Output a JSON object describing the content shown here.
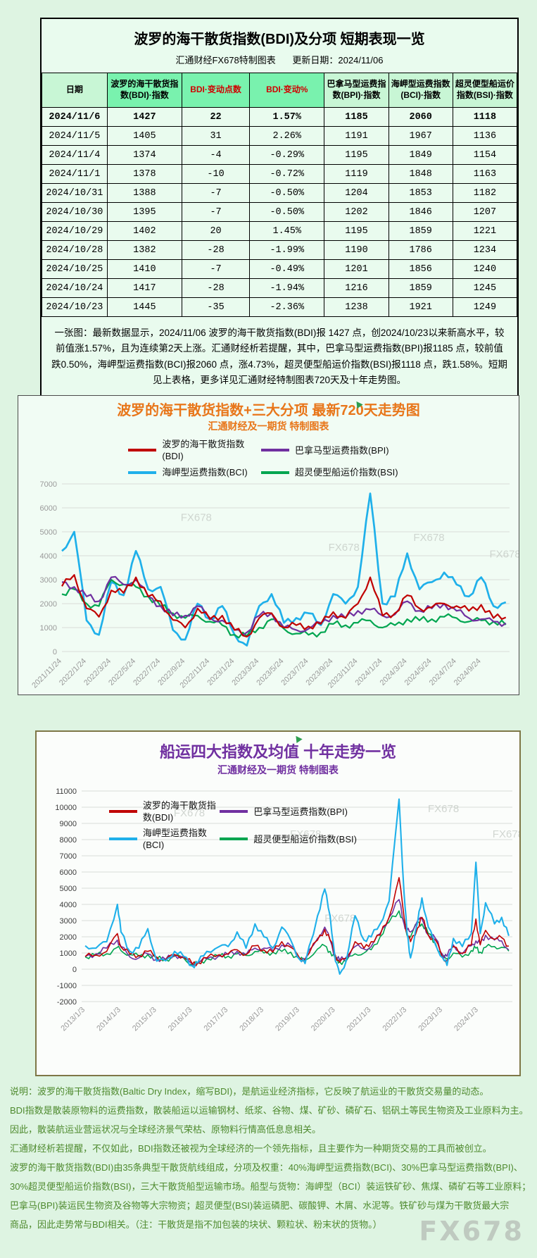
{
  "table_card": {
    "title": "波罗的海干散货指数(BDI)及分项 短期表现一览",
    "source": "汇通财经FX678特制图表",
    "update": "更新日期：2024/11/06",
    "columns": [
      "日期",
      "波罗的海干散货指数(BDI)·指数",
      "BDI·变动点数",
      "BDI·变动%",
      "巴拿马型运费指数(BPI)·指数",
      "海岬型运费指数(BCI)·指数",
      "超灵便型船运价指数(BSI)·指数"
    ],
    "rows": [
      [
        "2024/11/6",
        "1427",
        "22",
        "1.57%",
        "1185",
        "2060",
        "1118"
      ],
      [
        "2024/11/5",
        "1405",
        "31",
        "2.26%",
        "1191",
        "1967",
        "1136"
      ],
      [
        "2024/11/4",
        "1374",
        "-4",
        "-0.29%",
        "1195",
        "1849",
        "1154"
      ],
      [
        "2024/11/1",
        "1378",
        "-10",
        "-0.72%",
        "1119",
        "1848",
        "1163"
      ],
      [
        "2024/10/31",
        "1388",
        "-7",
        "-0.50%",
        "1204",
        "1853",
        "1182"
      ],
      [
        "2024/10/30",
        "1395",
        "-7",
        "-0.50%",
        "1202",
        "1846",
        "1207"
      ],
      [
        "2024/10/29",
        "1402",
        "20",
        "1.45%",
        "1195",
        "1859",
        "1221"
      ],
      [
        "2024/10/28",
        "1382",
        "-28",
        "-1.99%",
        "1190",
        "1786",
        "1234"
      ],
      [
        "2024/10/25",
        "1410",
        "-7",
        "-0.49%",
        "1201",
        "1856",
        "1240"
      ],
      [
        "2024/10/24",
        "1417",
        "-28",
        "-1.94%",
        "1216",
        "1859",
        "1245"
      ],
      [
        "2024/10/23",
        "1445",
        "-35",
        "-2.36%",
        "1238",
        "1921",
        "1249"
      ]
    ],
    "note": "一张图：最新数据显示，2024/11/06 波罗的海干散货指数(BDI)报 1427 点，创2024/10/23以来新高水平，较前值涨1.57%，且为连续第2天上涨。汇通财经析若提醒，其中，巴拿马型运费指数(BPI)报1185 点，较前值跌0.50%，海岬型运费指数(BCI)报2060 点，涨4.73%，超灵便型船运价指数(BSI)报1118 点，跌1.58%。短期见上表格，更多详见汇通财经特制图表720天及十年走势图。"
  },
  "chart_data": [
    {
      "type": "line",
      "title": "波罗的海干散货指数+三大分项 最新720天走势图",
      "subtitle": "汇通财经及一期货 特制图表",
      "watermark": "FX678",
      "grid": true,
      "legend_position": "top",
      "ylim": [
        0,
        7000
      ],
      "y_step": 1000,
      "x_range": [
        0,
        36.3
      ],
      "x": [
        0,
        1,
        2,
        3,
        4,
        5,
        6,
        7,
        8,
        9,
        10,
        11,
        12,
        13,
        14,
        15,
        16,
        17,
        18,
        19,
        20,
        21,
        22,
        23,
        24,
        25,
        26,
        27,
        28,
        29,
        30,
        31,
        32,
        33,
        34,
        35,
        36
      ],
      "x_tick_positions": [
        0,
        2,
        4,
        6,
        8,
        10,
        12,
        14,
        16,
        18,
        20,
        22,
        24,
        26,
        28,
        30,
        32,
        34
      ],
      "x_tick_labels": [
        "2021/11/24",
        "2022/1/24",
        "2022/3/24",
        "2022/5/24",
        "2022/7/24",
        "2022/9/24",
        "2022/11/24",
        "2023/1/24",
        "2023/3/24",
        "2023/5/24",
        "2023/7/24",
        "2023/9/24",
        "2023/11/24",
        "2024/1/24",
        "2024/3/24",
        "2024/5/24",
        "2024/7/24",
        "2024/9/24"
      ],
      "draw_order": [
        2,
        3,
        1,
        0
      ],
      "series": [
        {
          "key": "bdi",
          "name": "波罗的海干散货指数(BDI)",
          "color": "#c00000",
          "values": [
            2727,
            3200,
            1800,
            1450,
            2550,
            2450,
            3100,
            2300,
            2100,
            1320,
            1000,
            1800,
            1350,
            1500,
            900,
            620,
            1400,
            1600,
            1000,
            1100,
            1050,
            1150,
            1650,
            1400,
            2000,
            3100,
            1500,
            1600,
            2350,
            1800,
            1850,
            2000,
            1900,
            1700,
            1950,
            1400,
            1427
          ]
        },
        {
          "key": "bpi",
          "name": "巴拿马型运费指数(BPI)",
          "color": "#7030a0",
          "values": [
            2900,
            2700,
            2300,
            2100,
            3100,
            2800,
            3000,
            2300,
            1900,
            1500,
            1500,
            1900,
            1400,
            1300,
            900,
            800,
            1500,
            1600,
            1000,
            900,
            950,
            1200,
            1500,
            1400,
            1700,
            1750,
            1500,
            1550,
            2100,
            1700,
            1800,
            2000,
            1700,
            1400,
            1350,
            1250,
            1185
          ]
        },
        {
          "key": "bci",
          "name": "海岬型运费指数(BCI)",
          "color": "#1fb0ea",
          "values": [
            4200,
            5000,
            1300,
            700,
            2900,
            2350,
            4200,
            2600,
            2700,
            900,
            500,
            2000,
            1350,
            1900,
            700,
            250,
            1900,
            2400,
            1200,
            1400,
            1600,
            1100,
            2400,
            2000,
            2700,
            6600,
            2000,
            2300,
            4100,
            2600,
            2900,
            3300,
            2800,
            2300,
            3100,
            1900,
            2060
          ]
        },
        {
          "key": "bsi",
          "name": "超灵便型船运价指数(BSI)",
          "color": "#00a550",
          "values": [
            2400,
            2600,
            2000,
            1900,
            3000,
            2800,
            2700,
            2300,
            1900,
            1600,
            1400,
            1500,
            1250,
            1100,
            700,
            650,
            1000,
            1350,
            950,
            750,
            700,
            800,
            1150,
            1100,
            1200,
            1300,
            1000,
            1100,
            1350,
            1300,
            1350,
            1450,
            1400,
            1250,
            1300,
            1250,
            1118
          ]
        }
      ]
    },
    {
      "type": "line",
      "title": "船运四大指数及均值 十年走势一览",
      "subtitle": "汇通财经及一期货 特制图表",
      "watermark": "FX678",
      "grid": true,
      "legend_position": "top-inside",
      "ylim": [
        -2000,
        11000
      ],
      "y_step": 1000,
      "x_range": [
        2012.9,
        2024.95
      ],
      "x": [
        2013.0,
        2013.3,
        2013.6,
        2013.9,
        2014.0,
        2014.25,
        2014.5,
        2014.75,
        2015.0,
        2015.25,
        2015.5,
        2015.75,
        2016.0,
        2016.15,
        2016.4,
        2016.75,
        2017.0,
        2017.25,
        2017.5,
        2017.75,
        2018.0,
        2018.25,
        2018.5,
        2018.75,
        2019.0,
        2019.15,
        2019.5,
        2019.7,
        2019.85,
        2020.0,
        2020.12,
        2020.3,
        2020.55,
        2020.8,
        2021.0,
        2021.25,
        2021.5,
        2021.78,
        2021.92,
        2022.0,
        2022.1,
        2022.3,
        2022.42,
        2022.6,
        2022.8,
        2023.0,
        2023.12,
        2023.3,
        2023.55,
        2023.8,
        2023.93,
        2024.05,
        2024.2,
        2024.45,
        2024.65,
        2024.85
      ],
      "x_tick_positions": [
        2013,
        2014,
        2015,
        2016,
        2017,
        2018,
        2019,
        2020,
        2021,
        2022,
        2023,
        2024
      ],
      "x_tick_labels": [
        "2013/1/3",
        "2014/1/3",
        "2015/1/3",
        "2016/1/3",
        "2017/1/3",
        "2018/1/3",
        "2019/1/3",
        "2020/1/3",
        "2021/1/3",
        "2022/1/3",
        "2023/1/3",
        "2024/1/3"
      ],
      "draw_order": [
        3,
        1,
        0,
        2
      ],
      "series": [
        {
          "key": "bdi",
          "name": "波罗的海干散货指数(BDI)",
          "color": "#c00000",
          "values": [
            780,
            880,
            1100,
            2200,
            1370,
            930,
            850,
            1100,
            750,
            580,
            900,
            800,
            320,
            400,
            700,
            900,
            950,
            1200,
            900,
            1450,
            1200,
            1050,
            1700,
            1350,
            680,
            630,
            1800,
            2450,
            1800,
            850,
            430,
            650,
            1700,
            1300,
            1700,
            2100,
            3200,
            5650,
            3200,
            2200,
            1700,
            2550,
            3200,
            2100,
            1800,
            680,
            530,
            1400,
            1000,
            1500,
            3100,
            1500,
            2400,
            1850,
            1950,
            1427
          ]
        },
        {
          "key": "bpi",
          "name": "巴拿马型运费指数(BPI)",
          "color": "#7030a0",
          "values": [
            780,
            950,
            1300,
            1800,
            1400,
            750,
            700,
            950,
            600,
            600,
            900,
            700,
            300,
            400,
            650,
            850,
            900,
            1100,
            900,
            1300,
            1300,
            1150,
            1500,
            1450,
            650,
            600,
            1900,
            2600,
            1800,
            750,
            550,
            750,
            1400,
            1250,
            1400,
            2200,
            3200,
            4300,
            2800,
            2400,
            2300,
            3000,
            3100,
            2100,
            1900,
            900,
            800,
            1500,
            950,
            1450,
            1750,
            1550,
            2100,
            1800,
            1750,
            1185
          ]
        },
        {
          "key": "bci",
          "name": "海岬型运费指数(BCI)",
          "color": "#1fb0ea",
          "values": [
            1450,
            1300,
            1700,
            4000,
            2300,
            1100,
            1300,
            2500,
            500,
            520,
            1100,
            800,
            200,
            400,
            1100,
            1400,
            1400,
            2300,
            1300,
            2800,
            2000,
            1300,
            2600,
            1800,
            600,
            350,
            3300,
            4950,
            3300,
            500,
            -300,
            500,
            3300,
            1800,
            2000,
            2800,
            4200,
            10500,
            4700,
            2300,
            700,
            2900,
            4400,
            2600,
            1500,
            700,
            240,
            1900,
            1400,
            2200,
            6600,
            2200,
            4100,
            2800,
            3200,
            2060
          ]
        },
        {
          "key": "bsi",
          "name": "超灵便型船运价指数(BSI)",
          "color": "#00a550",
          "values": [
            760,
            850,
            950,
            1350,
            1150,
            900,
            800,
            900,
            650,
            600,
            800,
            700,
            270,
            350,
            650,
            800,
            800,
            950,
            850,
            1100,
            1000,
            1050,
            1100,
            1050,
            600,
            550,
            1250,
            1450,
            1100,
            600,
            450,
            500,
            950,
            1000,
            1200,
            2000,
            2900,
            3600,
            2900,
            2100,
            2000,
            2900,
            2800,
            2200,
            1600,
            700,
            650,
            1000,
            750,
            1150,
            1300,
            1050,
            1350,
            1400,
            1350,
            1118
          ]
        }
      ]
    }
  ],
  "footer": {
    "lines": [
      "说明：波罗的海干散货指数(Baltic Dry Index，缩写BDI)，是航运业经济指标，它反映了航运业的干散货交易量的动态。",
      "BDI指数是散装原物料的运费指数，散装船运以运输钢材、纸浆、谷物、煤、矿砂、磷矿石、铝矾土等民生物资及工业原料为主。",
      "因此，散装航运业营运状况与全球经济景气荣枯、原物料行情高低息息相关。",
      "汇通财经析若提醒，不仅如此，BDI指数还被视为全球经济的一个领先指标，且主要作为一种期货交易的工具而被创立。",
      "波罗的海干散货指数(BDI)由35条典型干散货航线组成，分项及权重：40%海岬型运费指数(BCI)、30%巴拿马型运费指数(BPI)、",
      "30%超灵便型船运价指数(BSI)，三大干散货船型运输市场。船型与货物：海岬型（BCI）装运铁矿砂、焦煤、磷矿石等工业原料；",
      "巴拿马(BPI)装运民生物资及谷物等大宗物资；超灵便型(BSI)装运磷肥、碳酸钾、木屑、水泥等。铁矿砂与煤为干散货最大宗",
      "商品，因此走势常与BDI相关。（注：干散货是指不加包装的块状、颗粒状、粉末状的货物。）"
    ],
    "watermark": "FX678"
  }
}
